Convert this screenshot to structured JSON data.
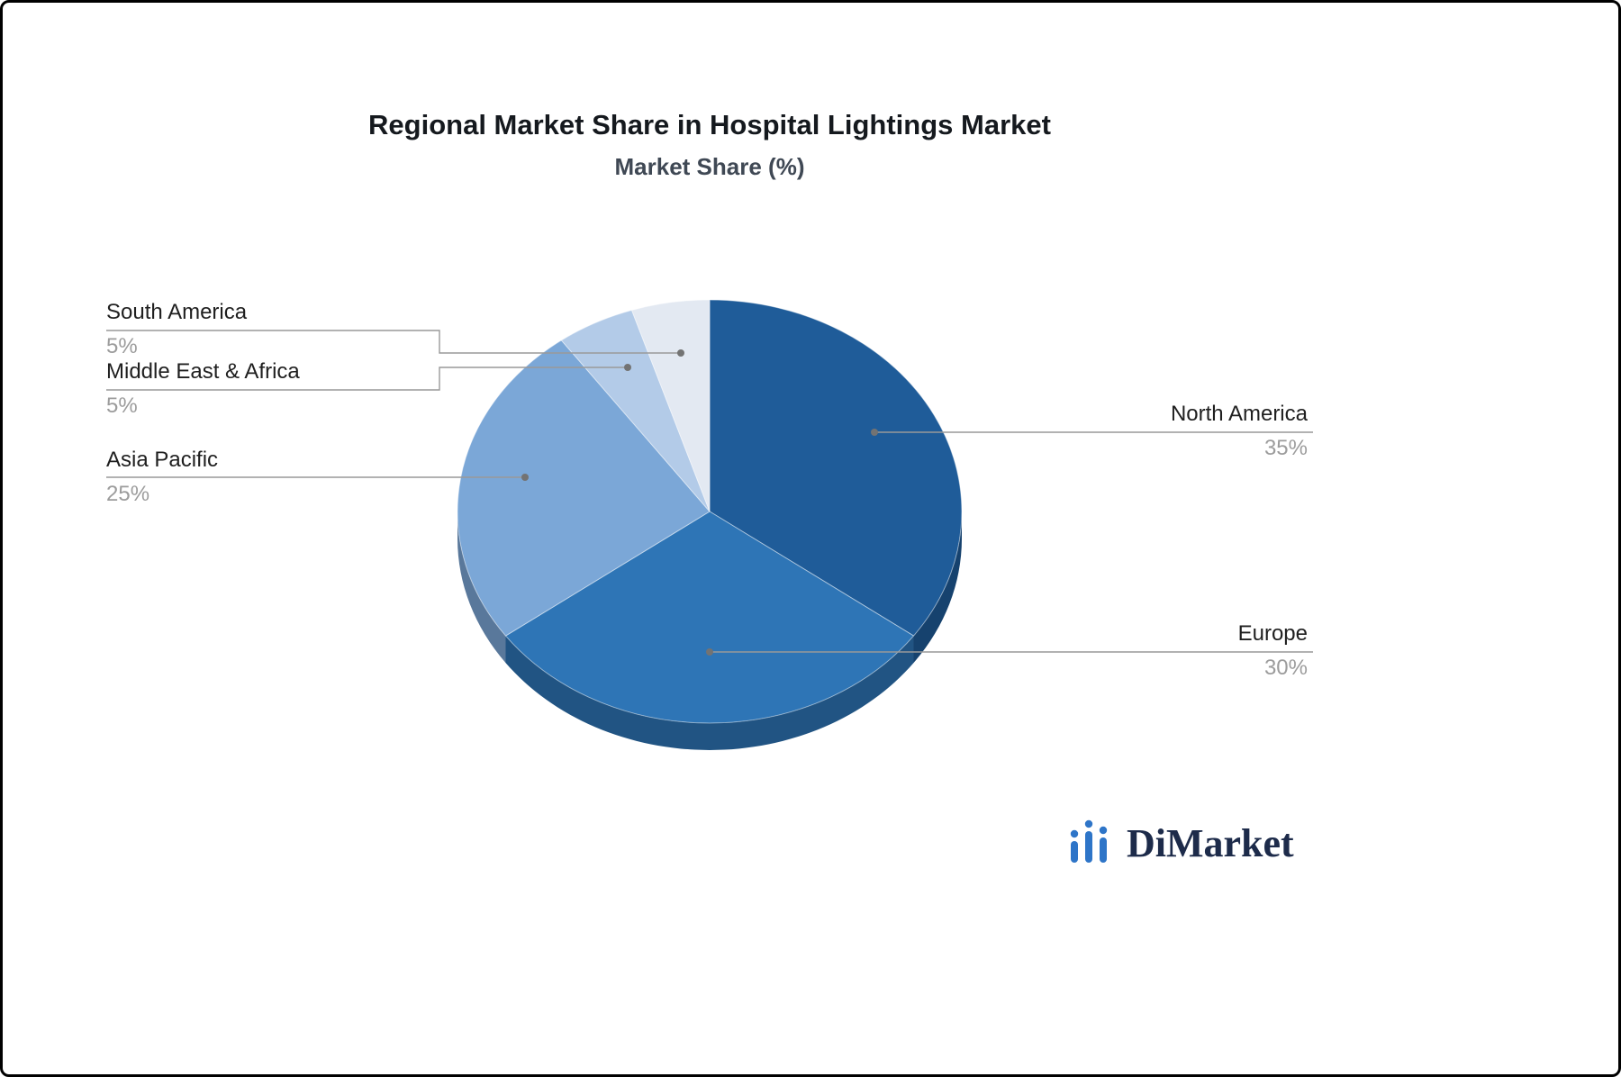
{
  "chart_data": {
    "type": "pie",
    "title": "Regional Market Share in Hospital Lightings Market",
    "subtitle": "Market Share (%)",
    "unit": "%",
    "direction": "clockwise",
    "start_angle_deg": -90,
    "legend_position": "callout-labels",
    "slices": [
      {
        "label": "North America",
        "value": 35,
        "pct_label": "35%",
        "color": "#1f5c99"
      },
      {
        "label": "Europe",
        "value": 30,
        "pct_label": "30%",
        "color": "#2e75b6"
      },
      {
        "label": "Asia Pacific",
        "value": 25,
        "pct_label": "25%",
        "color": "#7ba7d7"
      },
      {
        "label": "Middle East & Africa",
        "value": 5,
        "pct_label": "5%",
        "color": "#b3cbe8"
      },
      {
        "label": "South America",
        "value": 5,
        "pct_label": "5%",
        "color": "#e3e9f2"
      }
    ],
    "label_text_color": "#1f1f1f",
    "label_value_color": "#9c9c9c",
    "connector_color": "#999999"
  },
  "logo": {
    "text": "DiMarket",
    "icon": "bar-chart-icon",
    "icon_color": "#2e75c8",
    "text_color": "#1d2b4a"
  }
}
